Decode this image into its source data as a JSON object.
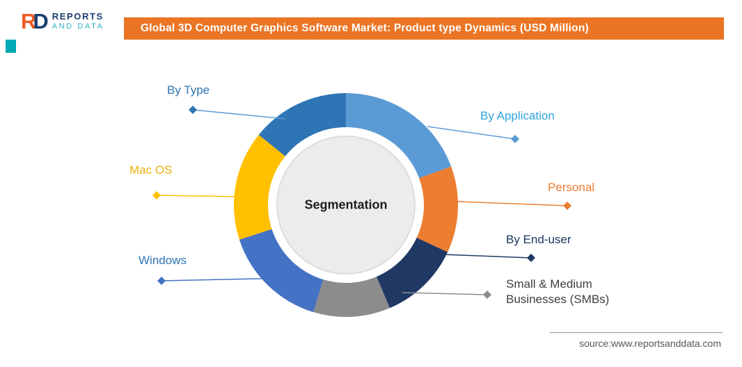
{
  "brand": {
    "logo_r": "R",
    "logo_d": "D",
    "name_line1": "REPORTS",
    "name_line2": "AND DATA"
  },
  "header": {
    "title": "Global 3D Computer Graphics Software Market: Product type Dynamics (USD Million)"
  },
  "colors": {
    "banner": "#EB7524",
    "accent_tab": "#00A9B3"
  },
  "chart_data": {
    "type": "pie",
    "variant": "donut",
    "title": "Global 3D Computer Graphics Software Market: Product type Dynamics (USD Million)",
    "center_label": "Segmentation",
    "legend_position": "callouts",
    "start_angle_deg": 0,
    "segments": [
      {
        "label": "By Application",
        "value": 19.4,
        "color": "#5B9BD5",
        "label_color": "#2EA3DB"
      },
      {
        "label": "Personal",
        "value": 12.5,
        "color": "#ED7D31",
        "label_color": "#ED7D31"
      },
      {
        "label": "By End-user",
        "value": 11.7,
        "color": "#203864",
        "label_color": "#17365D"
      },
      {
        "label": "Small & Medium Businesses (SMBs)",
        "value": 11.1,
        "color": "#8C8C8C",
        "label_color": "#3E3E3E"
      },
      {
        "label": "Windows",
        "value": 15.3,
        "color": "#4472C4",
        "label_color": "#2E75B6"
      },
      {
        "label": "Mac OS",
        "value": 15.8,
        "color": "#FFC000",
        "label_color": "#EFB310"
      },
      {
        "label": "By Type",
        "value": 14.2,
        "color": "#2E75B6",
        "label_color": "#2E75B6"
      }
    ]
  },
  "footer": {
    "source": "source:www.reportsanddata.com"
  }
}
